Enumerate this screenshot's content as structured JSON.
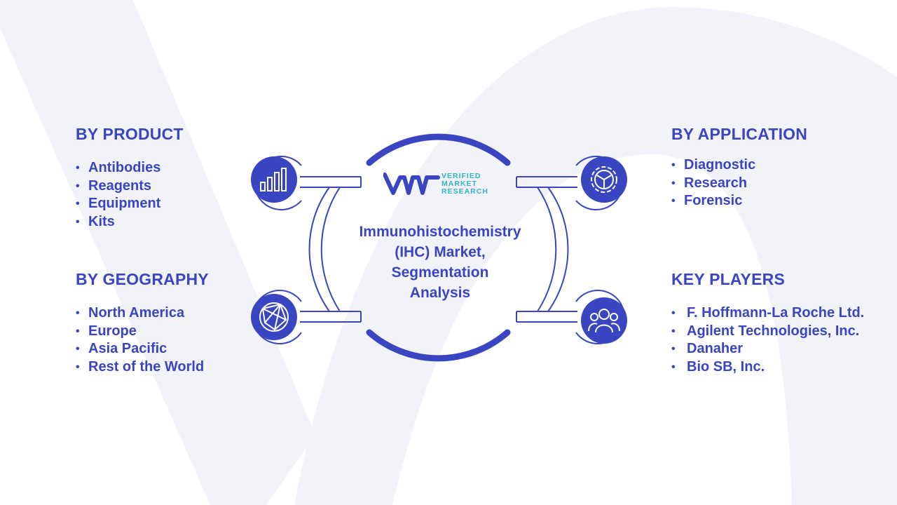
{
  "title": [
    "Immunohistochemistry",
    "(IHC) Market,",
    "Segmentation",
    "Analysis"
  ],
  "logo": {
    "lines": [
      "VERIFIED",
      "MARKET",
      "RESEARCH"
    ],
    "icon": "vmr-logo-icon"
  },
  "colors": {
    "primary": "#3a45c2",
    "accent": "#33b2c7",
    "background_shape": "#f1f2f8"
  },
  "sections": {
    "product": {
      "heading": "BY PRODUCT",
      "items": [
        "Antibodies",
        "Reagents",
        "Equipment",
        "Kits"
      ],
      "icon": "bar-chart-icon"
    },
    "geography": {
      "heading": "BY GEOGRAPHY",
      "items": [
        "North America",
        "Europe",
        "Asia Pacific",
        "Rest of the World"
      ],
      "icon": "globe-network-icon"
    },
    "application": {
      "heading": "BY APPLICATION",
      "items": [
        "Diagnostic",
        "Research",
        "Forensic"
      ],
      "icon": "gear-icon"
    },
    "players": {
      "heading": "KEY PLAYERS",
      "items": [
        "F. Hoffmann-La Roche Ltd.",
        "Agilent Technologies, Inc.",
        "Danaher",
        "Bio SB, Inc."
      ],
      "icon": "people-group-icon"
    }
  }
}
